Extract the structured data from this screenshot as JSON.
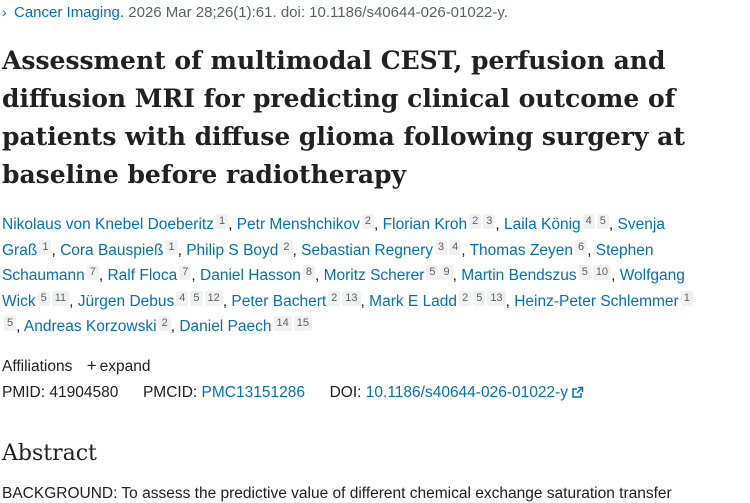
{
  "citation": {
    "journal": "Cancer Imaging.",
    "details": "2026 Mar 28;26(1):61. doi: 10.1186/s40644-026-01022-y."
  },
  "title": "Assessment of multimodal CEST, perfusion and diffusion MRI for predicting clinical outcome of patients with diffuse glioma following surgery at baseline before radiotherapy",
  "authors": [
    {
      "name": "Nikolaus von Knebel Doeberitz",
      "affiliations": [
        "1"
      ]
    },
    {
      "name": "Petr Menshchikov",
      "affiliations": [
        "2"
      ]
    },
    {
      "name": "Florian Kroh",
      "affiliations": [
        "2",
        "3"
      ]
    },
    {
      "name": "Laila König",
      "affiliations": [
        "4",
        "5"
      ]
    },
    {
      "name": "Svenja Graß",
      "affiliations": [
        "1"
      ]
    },
    {
      "name": "Cora Bauspieß",
      "affiliations": [
        "1"
      ]
    },
    {
      "name": "Philip S Boyd",
      "affiliations": [
        "2"
      ]
    },
    {
      "name": "Sebastian Regnery",
      "affiliations": [
        "3",
        "4"
      ]
    },
    {
      "name": "Thomas Zeyen",
      "affiliations": [
        "6"
      ]
    },
    {
      "name": "Stephen Schaumann",
      "affiliations": [
        "7"
      ]
    },
    {
      "name": "Ralf Floca",
      "affiliations": [
        "7"
      ]
    },
    {
      "name": "Daniel Hasson",
      "affiliations": [
        "8"
      ]
    },
    {
      "name": "Moritz Scherer",
      "affiliations": [
        "5",
        "9"
      ]
    },
    {
      "name": "Martin Bendszus",
      "affiliations": [
        "5",
        "10"
      ]
    },
    {
      "name": "Wolfgang Wick",
      "affiliations": [
        "5",
        "11"
      ]
    },
    {
      "name": "Jürgen Debus",
      "affiliations": [
        "4",
        "5",
        "12"
      ]
    },
    {
      "name": "Peter Bachert",
      "affiliations": [
        "2",
        "13"
      ]
    },
    {
      "name": "Mark E Ladd",
      "affiliations": [
        "2",
        "5",
        "13"
      ]
    },
    {
      "name": "Heinz-Peter Schlemmer",
      "affiliations": [
        "1",
        "5"
      ]
    },
    {
      "name": "Andreas Korzowski",
      "affiliations": [
        "2"
      ]
    },
    {
      "name": "Daniel Paech",
      "affiliations": [
        "14",
        "15"
      ]
    }
  ],
  "affiliations_label": "Affiliations",
  "expand_label": "expand",
  "ids": {
    "pmid_label": "PMID:",
    "pmid": "41904580",
    "pmcid_label": "PMCID:",
    "pmcid": "PMC13151286",
    "doi_label": "DOI:",
    "doi": "10.1186/s40644-026-01022-y"
  },
  "abstract_heading": "Abstract",
  "abstract_text": "BACKGROUND: To assess the predictive value of different chemical exchange saturation transfer",
  "icons": {
    "citation_chevron": "chevron-right-icon",
    "expand": "plus-icon",
    "external_link": "external-link-icon"
  },
  "colors": {
    "link": "#0071bc",
    "text": "#212121",
    "muted": "#5b616b",
    "sup_bg": "#f1f1f1"
  }
}
